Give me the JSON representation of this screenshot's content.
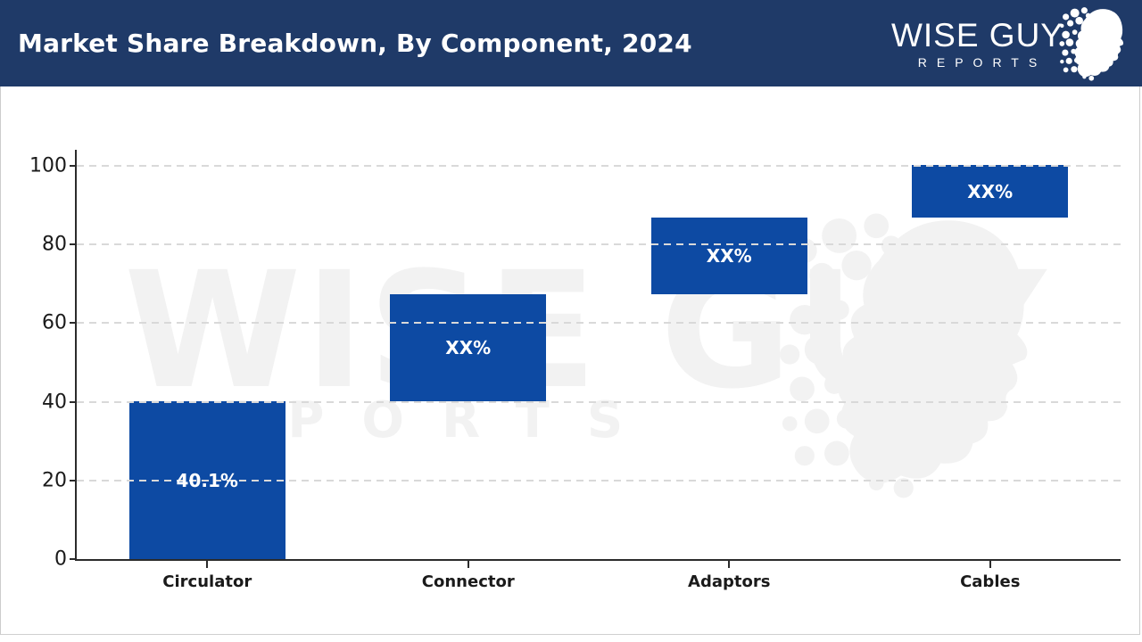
{
  "header": {
    "title": "Market Share Breakdown, By Component, 2024",
    "logo": {
      "line1": "WISE GUY",
      "line2": "REPORTS"
    }
  },
  "watermark": {
    "line1": "WISE GUY",
    "line2": "REPORTS"
  },
  "colors": {
    "header_bg": "#1f3a68",
    "bar": "#0d4aa3",
    "bar_label": "#ffffff",
    "gridline": "#d9d9d9",
    "axis": "#2b2b2b",
    "watermark": "#f2f2f2",
    "title_text": "#ffffff"
  },
  "chart_data": {
    "type": "bar",
    "subtype": "waterfall",
    "title": "Market Share Breakdown, By Component, 2024",
    "xlabel": "",
    "ylabel": "",
    "categories": [
      "Circulator",
      "Connector",
      "Adaptors",
      "Cables"
    ],
    "bars": [
      {
        "category": "Circulator",
        "label": "40.1%",
        "base": 0,
        "top": 40.1
      },
      {
        "category": "Connector",
        "label": "XX%",
        "base": 40.1,
        "top": 67.3
      },
      {
        "category": "Adaptors",
        "label": "XX%",
        "base": 67.3,
        "top": 86.8
      },
      {
        "category": "Cables",
        "label": "XX%",
        "base": 86.8,
        "top": 100.2
      }
    ],
    "yticks": [
      0,
      20,
      40,
      60,
      80,
      100
    ],
    "ylim": [
      0,
      104
    ],
    "grid": "horizontal-dashed-over-bars",
    "legend": "none",
    "unit": "percent"
  }
}
